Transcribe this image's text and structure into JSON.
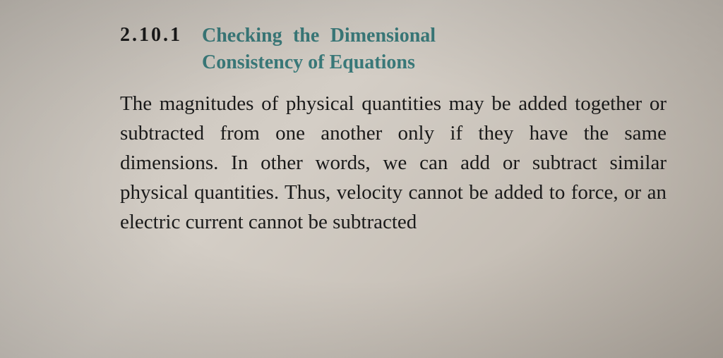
{
  "section": {
    "number": "2.10.1",
    "title_line1": "Checking the Dimensional",
    "title_line2": "Consistency of Equations"
  },
  "body": {
    "paragraph": "The magnitudes of physical quantities may be added together or subtracted from one another only if they have the same dimensions. In other words, we can add or subtract similar physical quantities. Thus, velocity cannot be added to force, or an electric current cannot be subtracted"
  },
  "style": {
    "title_color": "#3a7a7a",
    "text_color": "#1a1a1a",
    "background_gradient_start": "#c8c2ba",
    "background_gradient_end": "#b8b0a6",
    "section_number_fontsize": 28,
    "title_fontsize": 28,
    "body_fontsize": 29,
    "body_lineheight": 1.45
  }
}
